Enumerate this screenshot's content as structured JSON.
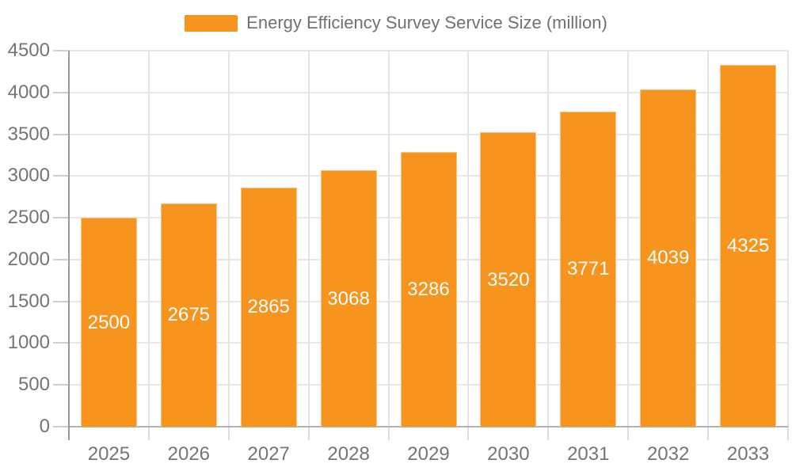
{
  "legend": {
    "label": "Energy Efficiency Survey Service Size (million)",
    "swatch_color": "#F7941E"
  },
  "chart_data": {
    "type": "bar",
    "title": "",
    "xlabel": "",
    "ylabel": "",
    "categories": [
      "2025",
      "2026",
      "2027",
      "2028",
      "2029",
      "2030",
      "2031",
      "2032",
      "2033"
    ],
    "values": [
      2500,
      2675,
      2865,
      3068,
      3286,
      3520,
      3771,
      4039,
      4325
    ],
    "series_name": "Energy Efficiency Survey Service Size (million)",
    "ylim": [
      0,
      4500
    ],
    "yticks": [
      0,
      500,
      1000,
      1500,
      2000,
      2500,
      3000,
      3500,
      4000,
      4500
    ],
    "grid": true,
    "legend_position": "top-center",
    "bar_color": "#F7941E",
    "bar_label_color": "#FFFFFF",
    "axis_label_color": "#757575"
  }
}
